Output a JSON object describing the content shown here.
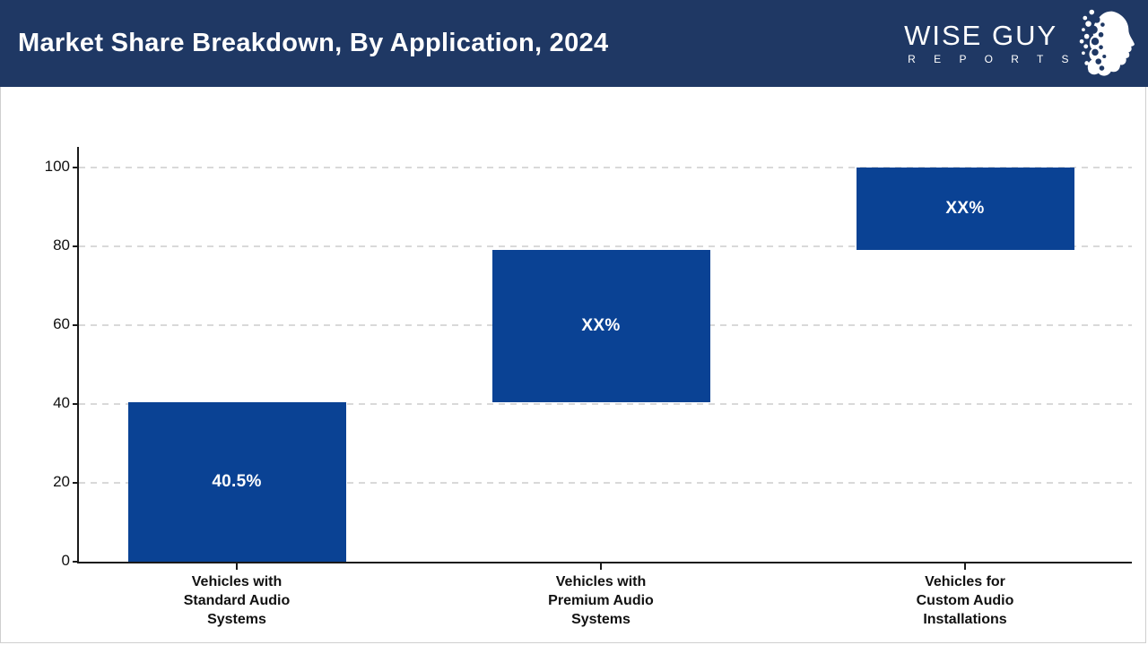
{
  "header": {
    "title": "Market Share Breakdown, By Application, 2024",
    "logo": {
      "line1": "WISE GUY",
      "line2": "R E P O R T S"
    }
  },
  "watermark": {
    "line1": "WISE GUY",
    "line2": "R E P O R T S"
  },
  "colors": {
    "header_bg": "#1f3864",
    "bar_fill": "#0a4294",
    "grid": "#d9d9d9",
    "axis": "#1a1a1a",
    "bar_label_text": "#ffffff",
    "watermark": "#f3f3f3"
  },
  "chart_data": {
    "type": "bar",
    "subtype": "floating_waterfall",
    "title": "Market Share Breakdown, By Application, 2024",
    "xlabel": "",
    "ylabel": "",
    "ylim": [
      0,
      105
    ],
    "yticks": [
      0,
      20,
      40,
      60,
      80,
      100
    ],
    "grid": "horizontal-dashed",
    "legend": "none",
    "categories": [
      [
        "Vehicles with",
        "Standard Audio",
        "Systems"
      ],
      [
        "Vehicles with",
        "Premium Audio",
        "Systems"
      ],
      [
        "Vehicles for",
        "Custom Audio",
        "Installations"
      ]
    ],
    "bars": [
      {
        "start": 0,
        "end": 40.5,
        "label": "40.5%"
      },
      {
        "start": 40.5,
        "end": 79,
        "label": "XX%"
      },
      {
        "start": 79,
        "end": 100,
        "label": "XX%"
      }
    ]
  }
}
